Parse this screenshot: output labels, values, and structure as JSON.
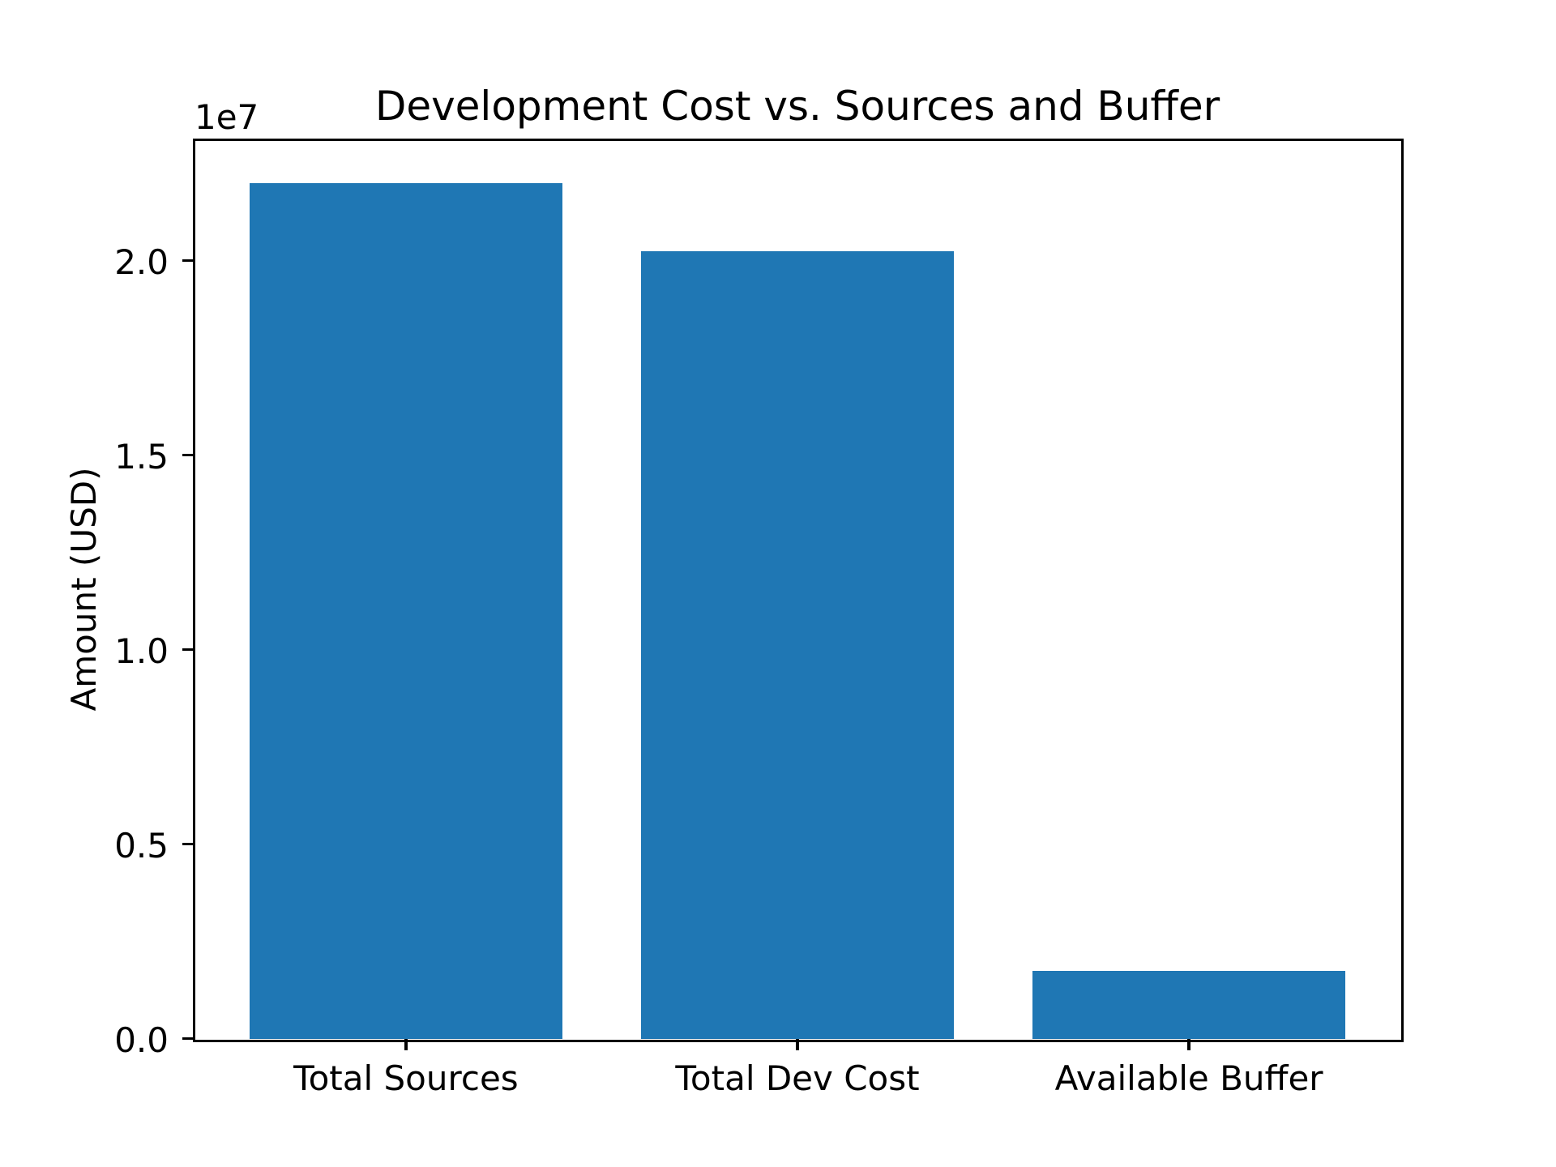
{
  "chart_data": {
    "type": "bar",
    "title": "Development Cost vs. Sources and Buffer",
    "categories": [
      "Total Sources",
      "Total Dev Cost",
      "Available Buffer"
    ],
    "values": [
      22000000,
      20250000,
      1750000
    ],
    "xlabel": "",
    "ylabel": "Amount (USD)",
    "ylim": [
      0,
      23100000
    ],
    "y_ticks": [
      0,
      5000000,
      10000000,
      15000000,
      20000000
    ],
    "y_tick_labels": [
      "0.0",
      "0.5",
      "1.0",
      "1.5",
      "2.0"
    ],
    "y_offset_label": "1e7",
    "bar_color": "#1f77b4",
    "grid": false,
    "legend": false
  },
  "colors": {
    "bar": "#1f77b4",
    "text": "#000000",
    "spine": "#000000",
    "background": "#ffffff"
  }
}
